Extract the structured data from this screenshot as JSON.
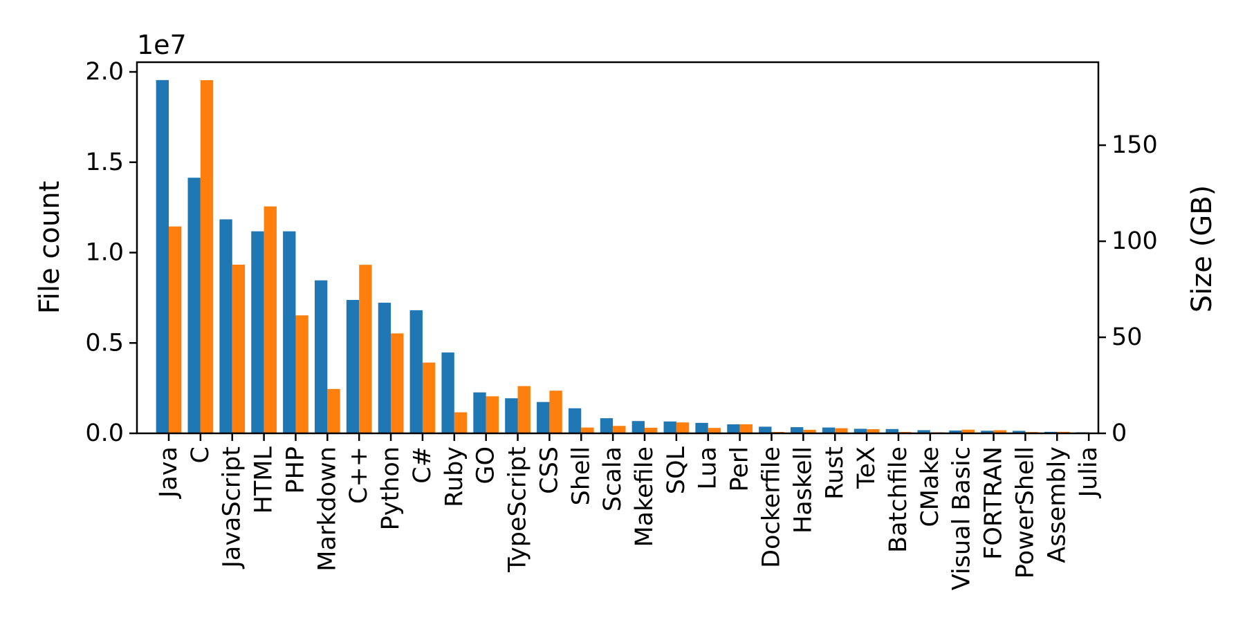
{
  "figure": {
    "background": "#ffffff",
    "title": ""
  },
  "chart_data": {
    "type": "bar",
    "title": "",
    "grid": false,
    "legend": "none",
    "categories": [
      "Java",
      "C",
      "JavaScript",
      "HTML",
      "PHP",
      "Markdown",
      "C++",
      "Python",
      "C#",
      "Ruby",
      "GO",
      "TypeScript",
      "CSS",
      "Shell",
      "Scala",
      "Makefile",
      "SQL",
      "Lua",
      "Perl",
      "Dockerfile",
      "Haskell",
      "Rust",
      "TeX",
      "Batchfile",
      "CMake",
      "Visual Basic",
      "FORTRAN",
      "PowerShell",
      "Assembly",
      "Julia"
    ],
    "series": [
      {
        "name": "File count",
        "axis": "left",
        "color": "#1f77b4",
        "values": [
          19548190,
          14143113,
          11839883,
          11178557,
          11177610,
          8464626,
          7380520,
          7226626,
          6811652,
          4473331,
          2265436,
          1940406,
          1734406,
          1385648,
          835755,
          679430,
          656671,
          578554,
          497949,
          366505,
          340623,
          322431,
          251015,
          236945,
          175282,
          155652,
          142038,
          136846,
          82905,
          58317
        ]
      },
      {
        "name": "Size (GB)",
        "axis": "right",
        "color": "#ff7f0e",
        "values": [
          107.7,
          183.83,
          87.82,
          118.12,
          61.41,
          23.09,
          87.73,
          52.03,
          36.83,
          10.95,
          19.28,
          24.59,
          22.22,
          3.01,
          3.87,
          2.92,
          5.67,
          2.81,
          4.7,
          0.71,
          1.85,
          2.68,
          2.15,
          0.7,
          0.54,
          1.91,
          1.62,
          0.69,
          0.78,
          0.29
        ]
      }
    ],
    "left_axis": {
      "label": "File count",
      "color": "#1f77b4",
      "offset_text": "1e7",
      "range": [
        0,
        20536000
      ],
      "ticks": [
        0,
        5000000,
        10000000,
        15000000,
        20000000
      ],
      "tick_labels": [
        "0.0",
        "0.5",
        "1.0",
        "1.5",
        "2.0"
      ]
    },
    "right_axis": {
      "label": "Size (GB)",
      "color": "#ff7f0e",
      "range": [
        0,
        193.2
      ],
      "ticks": [
        0,
        50,
        100,
        150
      ],
      "tick_labels": [
        "0",
        "50",
        "100",
        "150"
      ]
    },
    "spine_color": "#000000",
    "tick_label_color": "#000000"
  }
}
